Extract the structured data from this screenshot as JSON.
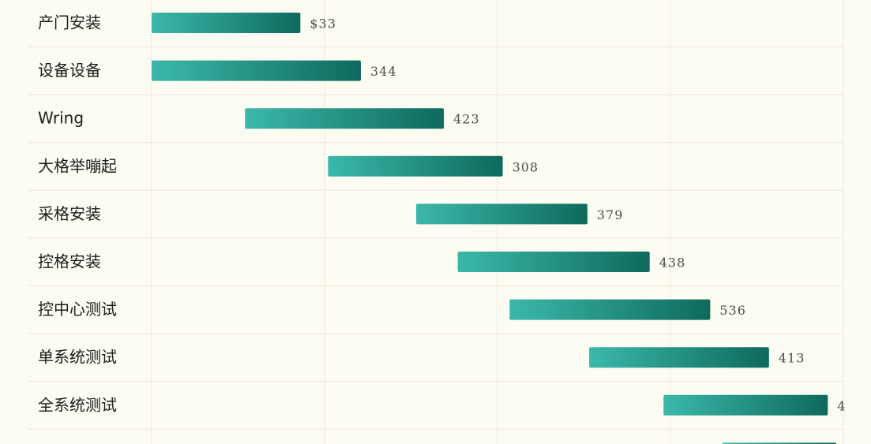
{
  "chart_data": {
    "type": "gantt",
    "categories": [
      "产门安装",
      "设备设备",
      "Wring",
      "大格举嘣起",
      "采格安装",
      "控格安装",
      "控中心测试",
      "单系统测试",
      "全系统测试",
      null
    ],
    "start": [
      0,
      0,
      0.54,
      1.02,
      1.53,
      1.77,
      2.07,
      2.53,
      2.96,
      3.3
    ],
    "end": [
      0.86,
      1.21,
      1.69,
      2.03,
      2.52,
      2.88,
      3.23,
      3.57,
      3.91,
      3.96
    ],
    "bar_labels": [
      "$33",
      "344",
      "423",
      "308",
      "379",
      "438",
      "536",
      "413",
      "4",
      null
    ],
    "xlim": [
      0,
      4
    ],
    "color_start": "#3bb8aa",
    "color_end": "#0e6a5d"
  }
}
